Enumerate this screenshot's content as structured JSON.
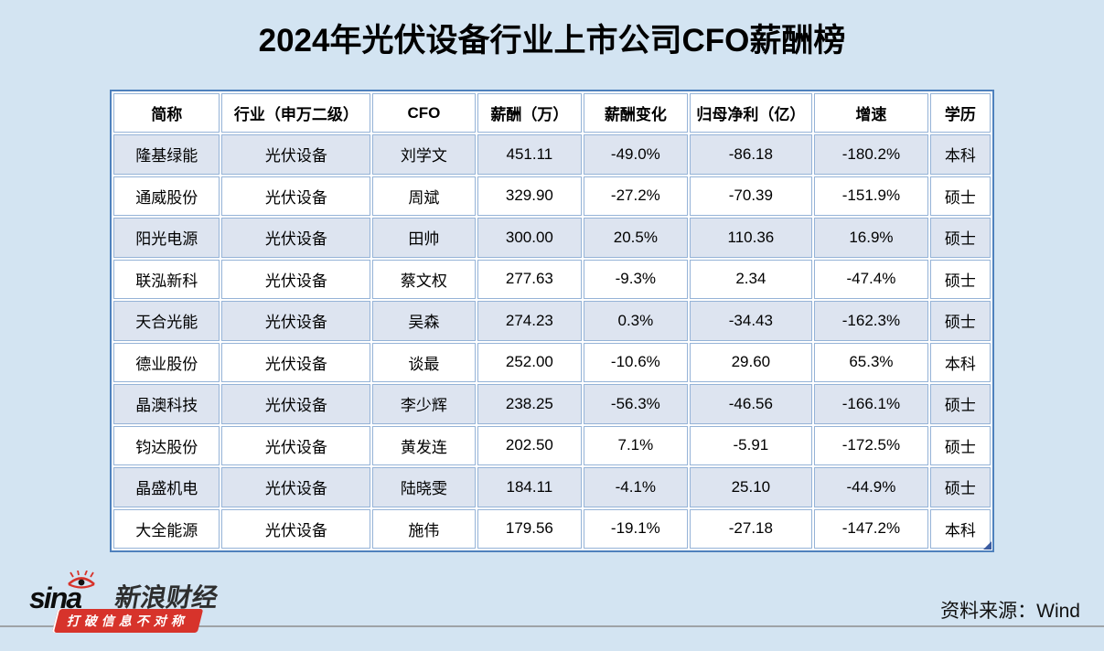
{
  "title": "2024年光伏设备行业上市公司CFO薪酬榜",
  "chart_data": {
    "type": "table",
    "title": "2024年光伏设备行业上市公司CFO薪酬榜",
    "columns": [
      "简称",
      "行业（申万二级）",
      "CFO",
      "薪酬（万）",
      "薪酬变化",
      "归母净利（亿）",
      "增速",
      "学历"
    ],
    "rows": [
      [
        "隆基绿能",
        "光伏设备",
        "刘学文",
        "451.11",
        "-49.0%",
        "-86.18",
        "-180.2%",
        "本科"
      ],
      [
        "通威股份",
        "光伏设备",
        "周斌",
        "329.90",
        "-27.2%",
        "-70.39",
        "-151.9%",
        "硕士"
      ],
      [
        "阳光电源",
        "光伏设备",
        "田帅",
        "300.00",
        "20.5%",
        "110.36",
        "16.9%",
        "硕士"
      ],
      [
        "联泓新科",
        "光伏设备",
        "蔡文权",
        "277.63",
        "-9.3%",
        "2.34",
        "-47.4%",
        "硕士"
      ],
      [
        "天合光能",
        "光伏设备",
        "吴森",
        "274.23",
        "0.3%",
        "-34.43",
        "-162.3%",
        "硕士"
      ],
      [
        "德业股份",
        "光伏设备",
        "谈最",
        "252.00",
        "-10.6%",
        "29.60",
        "65.3%",
        "本科"
      ],
      [
        "晶澳科技",
        "光伏设备",
        "李少辉",
        "238.25",
        "-56.3%",
        "-46.56",
        "-166.1%",
        "硕士"
      ],
      [
        "钧达股份",
        "光伏设备",
        "黄发连",
        "202.50",
        "7.1%",
        "-5.91",
        "-172.5%",
        "硕士"
      ],
      [
        "晶盛机电",
        "光伏设备",
        "陆晓雯",
        "184.11",
        "-4.1%",
        "25.10",
        "-44.9%",
        "硕士"
      ],
      [
        "大全能源",
        "光伏设备",
        "施伟",
        "179.56",
        "-19.1%",
        "-27.18",
        "-147.2%",
        "本科"
      ]
    ]
  },
  "footer": {
    "source": "资料来源：Wind",
    "logo": {
      "brand": "sina",
      "brand_cn": "新浪财经",
      "tagline": "打破信息不对称"
    }
  },
  "colors": {
    "page_bg": "#d3e4f2",
    "header_bg": "#ffffff",
    "row_alt_bg": "#dde4f0",
    "outer_border": "#4f81bd",
    "cell_border": "#95b3d7",
    "banner_red": "#d7332b",
    "divider_gray": "#9fa3a7"
  }
}
